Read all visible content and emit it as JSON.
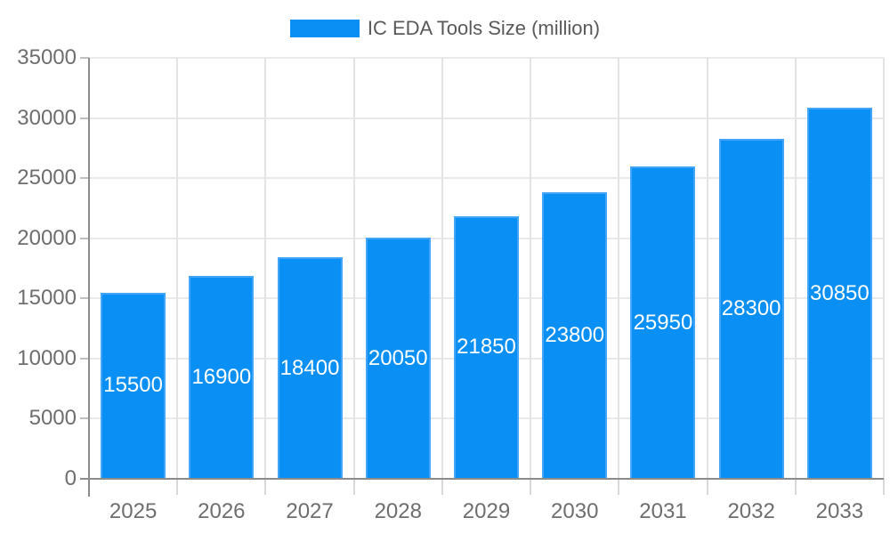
{
  "chart_data": {
    "type": "bar",
    "series_label": "IC EDA Tools Size (million)",
    "categories": [
      "2025",
      "2026",
      "2027",
      "2028",
      "2029",
      "2030",
      "2031",
      "2032",
      "2033"
    ],
    "values": [
      15500,
      16900,
      18400,
      20050,
      21850,
      23800,
      25950,
      28300,
      30850
    ],
    "title": "",
    "xlabel": "",
    "ylabel": "",
    "ylim": [
      0,
      35000
    ],
    "ytick_step": 5000,
    "yticks": [
      0,
      5000,
      10000,
      15000,
      20000,
      25000,
      30000,
      35000
    ],
    "legend_position": "top",
    "grid": true,
    "bar_labels_inside": true,
    "colors": {
      "bar_fill": "#0a90f5",
      "bar_border": "#44a5f6",
      "bar_label_text": "#ffffff",
      "grid_horizontal": "#e9e9e9",
      "grid_vertical": "#e3e3e3",
      "axis_line": "#8c8c8c",
      "y_tick_mark": "#c0c0c0",
      "x_tick_mark": "#d9d9d9",
      "tick_text": "#6e6e6e",
      "legend_text": "#595959",
      "background": "#ffffff"
    }
  }
}
